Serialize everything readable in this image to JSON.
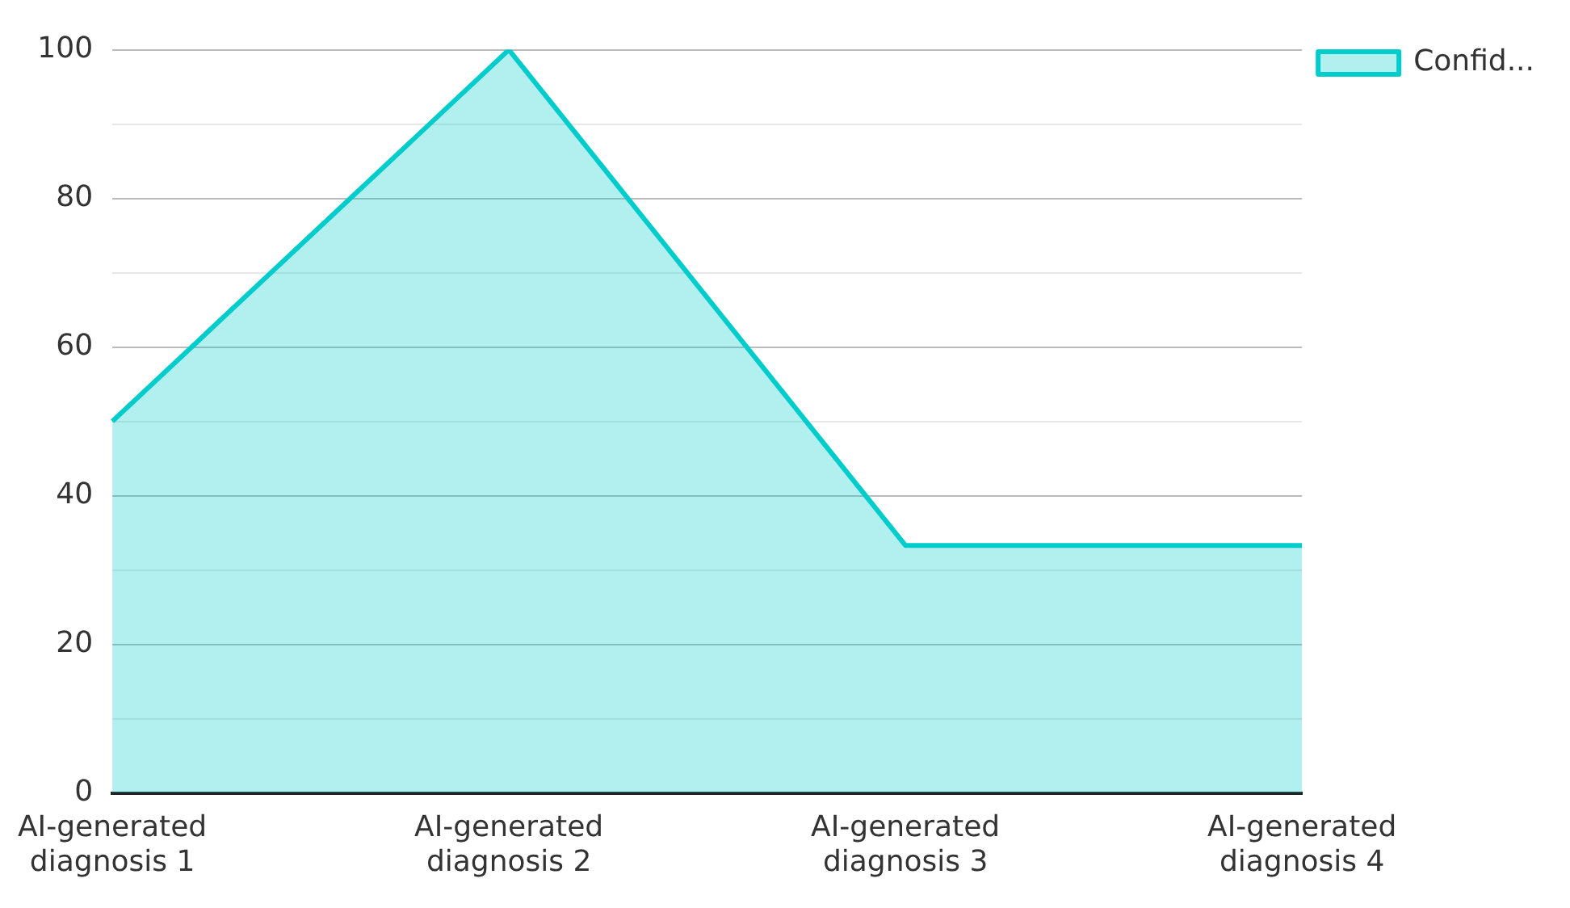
{
  "chart_data": {
    "type": "area",
    "categories": [
      "AI-generated diagnosis 1",
      "AI-generated diagnosis 2",
      "AI-generated diagnosis 3",
      "AI-generated diagnosis 4"
    ],
    "series": [
      {
        "name": "Confid...",
        "color": "#00cccc",
        "values": [
          50,
          100,
          33.3,
          33.3
        ]
      }
    ],
    "ylim": [
      0,
      100
    ],
    "yticks": [
      0,
      {
        "value": 10,
        "label": null
      },
      20,
      {
        "value": 30,
        "label": null
      },
      40,
      {
        "value": 50,
        "label": null
      },
      60,
      {
        "value": 70,
        "label": null
      },
      80,
      {
        "value": 90,
        "label": null
      },
      100
    ],
    "grid": "y",
    "legend": "top right",
    "marker": "none",
    "line_style": "solid"
  }
}
